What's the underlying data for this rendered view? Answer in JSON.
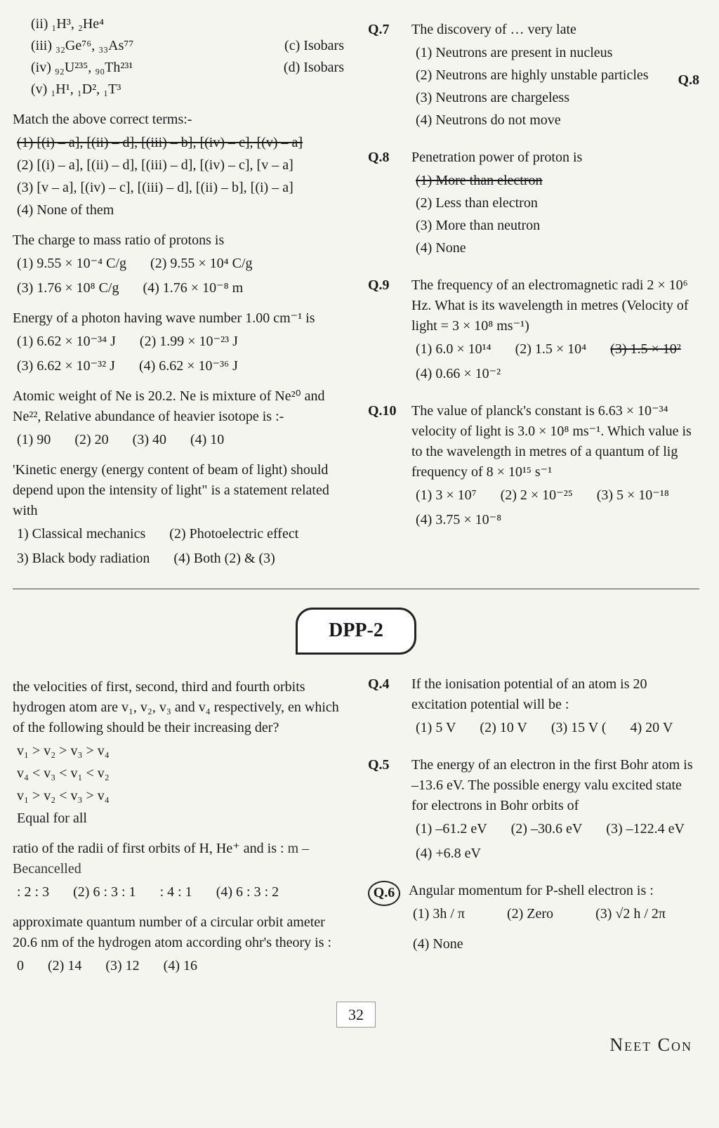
{
  "top_left": {
    "items": [
      "(ii) ₁H³, ₂He⁴",
      "(iii) ₃₂Ge⁷⁶, ₃₃As⁷⁷",
      "(iv) ₉₂U²³⁵, ₉₀Th²³¹",
      "(v) ₁H¹, ₁D², ₁T³"
    ],
    "extra_opts": [
      "(c) Isobars",
      "(d) Isobars"
    ],
    "match_stem": "Match the above correct terms:-",
    "match_opts": [
      "(1) [(i) – a], [(ii) – d], [(iii) – b], [(iv) – c], [(v) – a]",
      "(2) [(i) – a], [(ii) – d], [(iii) – d], [(iv) – c], [v – a]",
      "(3) [v – a], [(iv) – c], [(iii) – d], [(ii) – b], [(i) – a]",
      "(4) None of them"
    ]
  },
  "q7": {
    "num": "Q.7",
    "stem": "The discovery of … very late",
    "opts": [
      "(1) Neutrons are present in nucleus",
      "(2) Neutrons are highly unstable particles",
      "(3) Neutrons are chargeless",
      "(4) Neutrons do not move"
    ],
    "sidelabel": "Q.8"
  },
  "q8": {
    "num": "Q.8",
    "stem": "Penetration power of proton is",
    "opts": [
      "(1) More than electron",
      "(2) Less than electron",
      "(3) More than neutron",
      "(4) None"
    ]
  },
  "charge_mass": {
    "stem": "The charge to mass ratio of protons is",
    "opts": [
      "(1) 9.55 × 10⁻⁴ C/g",
      "(2) 9.55 × 10⁴ C/g",
      "(3) 1.76 × 10⁸ C/g",
      "(4) 1.76 × 10⁻⁸ m"
    ]
  },
  "energy_photon": {
    "stem": "Energy of a photon having wave number 1.00 cm⁻¹ is",
    "opts": [
      "(1) 6.62 × 10⁻³⁴ J",
      "(2) 1.99 × 10⁻²³ J",
      "(3) 6.62 × 10⁻³² J",
      "(4) 6.62 × 10⁻³⁶ J"
    ]
  },
  "atomic_wt": {
    "stem": "Atomic weight of Ne is 20.2. Ne is mixture of Ne²⁰ and Ne²², Relative abundance of heavier isotope is :-",
    "opts": [
      "(1) 90",
      "(2) 20",
      "(3) 40",
      "(4) 10"
    ]
  },
  "ke_light": {
    "stem": "'Kinetic energy (energy content of beam of light) should depend upon the intensity of light\" is a statement related with",
    "opts": [
      "1) Classical mechanics",
      "(2) Photoelectric effect",
      "3) Black body radiation",
      "(4) Both (2) & (3)"
    ]
  },
  "q9": {
    "num": "Q.9",
    "stem": "The frequency of an electromagnetic radi 2 × 10⁶ Hz. What is its wavelength in metres (Velocity of light = 3 × 10⁸ ms⁻¹)",
    "opts": [
      "(1) 6.0 × 10¹⁴",
      "(2) 1.5 × 10⁴",
      "(3) 1.5 × 10²",
      "(4) 0.66 × 10⁻²"
    ]
  },
  "q10": {
    "num": "Q.10",
    "stem": "The value of planck's constant is 6.63 × 10⁻³⁴ velocity of light is 3.0 × 10⁸ ms⁻¹. Which value is to the wavelength in metres of a quantum of lig frequency of 8 × 10¹⁵ s⁻¹",
    "opts": [
      "(1) 3 × 10⁷",
      "(2) 2 × 10⁻²⁵",
      "(3) 5 × 10⁻¹⁸",
      "(4) 3.75 × 10⁻⁸"
    ]
  },
  "dpp": "DPP-2",
  "velocities": {
    "stem": "the velocities of first, second, third and fourth orbits hydrogen atom are v₁, v₂, v₃ and v₄ respectively, en which of the following should be their increasing der?",
    "opts": [
      "v₁ > v₂ > v₃ > v₄",
      "v₄ < v₃ < v₁ < v₂",
      "v₁ > v₂ < v₃ > v₄",
      "Equal for all"
    ]
  },
  "radii": {
    "stem": "ratio of the radii of first orbits of H, He⁺ and is :",
    "hand": "m – Becancelled",
    "opts": [
      ": 2 : 3",
      "(2) 6 : 3 : 1",
      ": 4 : 1",
      "(4) 6 : 3 : 2"
    ]
  },
  "approx_n": {
    "stem": "approximate quantum number of a circular orbit ameter 20.6 nm of the hydrogen atom according ohr's theory is :",
    "opts": [
      "0",
      "(2) 14",
      "(3) 12",
      "(4) 16"
    ]
  },
  "q4": {
    "num": "Q.4",
    "stem": "If the ionisation potential of an atom is 20 excitation potential will be :",
    "opts": [
      "(1) 5 V",
      "(2) 10 V",
      "(3) 15 V      (",
      "4) 20 V"
    ]
  },
  "q5": {
    "num": "Q.5",
    "stem": "The energy of an electron in the first Bohr atom is –13.6 eV. The possible energy valu excited state for electrons in Bohr orbits of",
    "opts": [
      "(1) –61.2 eV",
      "(2) –30.6 eV",
      "(3) –122.4 eV",
      "(4) +6.8 eV"
    ]
  },
  "q6": {
    "num": "Q.6",
    "stem": "Angular momentum for P-shell electron is :",
    "opts": [
      "(1) 3h / π",
      "(2) Zero",
      "(3) √2 h / 2π",
      "(4) None"
    ]
  },
  "page_number": "32",
  "footer": "Neet Con"
}
